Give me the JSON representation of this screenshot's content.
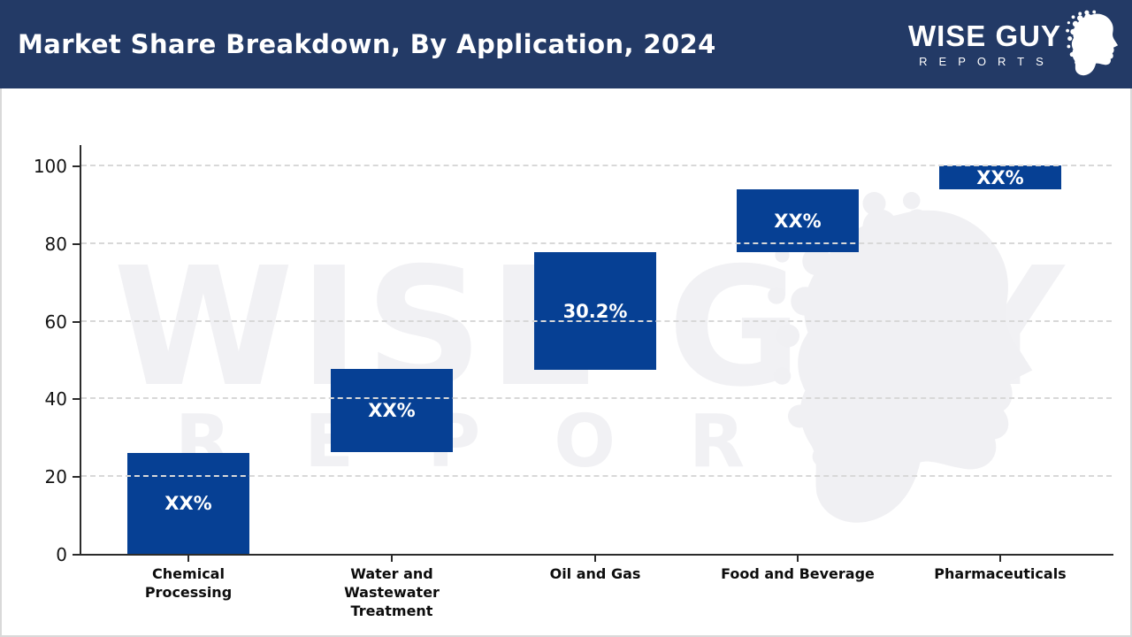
{
  "header": {
    "title": "Market Share Breakdown, By Application, 2024",
    "bg_color": "#233a66",
    "logo": {
      "line1": "WISE GUY",
      "line2": "REPORTS"
    }
  },
  "watermark": {
    "line1": "WISE GUY",
    "line2": "REPORTS"
  },
  "chart_data": {
    "type": "bar",
    "subtype": "waterfall",
    "title": "Market Share Breakdown, By Application, 2024",
    "categories": [
      "Chemical\nProcessing",
      "Water and\nWastewater\nTreatment",
      "Oil and Gas",
      "Food and Beverage",
      "Pharmaceuticals"
    ],
    "series": [
      {
        "name": "Market share (%)",
        "segments": [
          {
            "category": "Chemical Processing",
            "start": 0,
            "end": 26,
            "label": "XX%"
          },
          {
            "category": "Water and Wastewater Treatment",
            "start": 26,
            "end": 47.5,
            "label": "XX%"
          },
          {
            "category": "Oil and Gas",
            "start": 47.5,
            "end": 77.7,
            "label": "30.2%",
            "value": 30.2
          },
          {
            "category": "Food and Beverage",
            "start": 77.7,
            "end": 93.8,
            "label": "XX%"
          },
          {
            "category": "Pharmaceuticals",
            "start": 93.8,
            "end": 100,
            "label": "XX%"
          }
        ]
      }
    ],
    "ylim": [
      0,
      100
    ],
    "yticks": [
      0,
      20,
      40,
      60,
      80,
      100
    ],
    "grid": {
      "horizontal": true,
      "style": "dashed",
      "color": "#d8d8d8",
      "above_bars": true
    },
    "bar_color": "#064094",
    "label_color": "#ffffff",
    "axis_color": "#2b2b2b",
    "legend": null
  }
}
